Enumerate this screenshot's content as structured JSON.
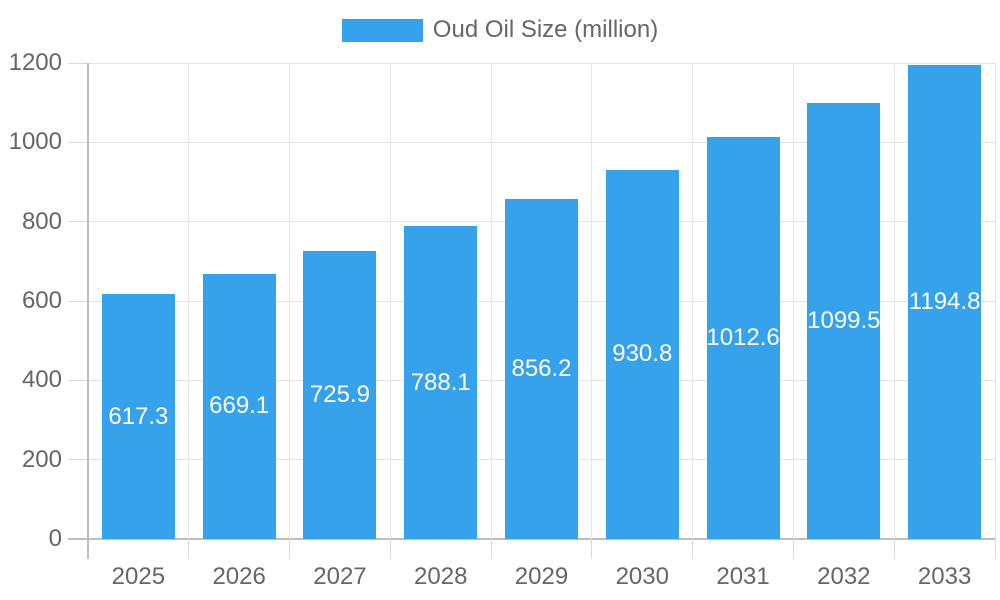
{
  "legend": {
    "label": "Oud Oil Size (million)"
  },
  "chart_data": {
    "type": "bar",
    "title": "",
    "categories": [
      "2025",
      "2026",
      "2027",
      "2028",
      "2029",
      "2030",
      "2031",
      "2032",
      "2033"
    ],
    "series": [
      {
        "name": "Oud Oil Size (million)",
        "values": [
          617.3,
          669.1,
          725.9,
          788.1,
          856.2,
          930.8,
          1012.6,
          1099.5,
          1194.8
        ]
      }
    ],
    "value_labels": [
      "617.3",
      "669.1",
      "725.9",
      "788.1",
      "856.2",
      "930.8",
      "1012.6",
      "1099.5",
      "1194.8"
    ],
    "ylim": [
      0,
      1200
    ],
    "ytick_step": 200,
    "ytick_labels": [
      "0",
      "200",
      "400",
      "600",
      "800",
      "1000",
      "1200"
    ],
    "grid": true,
    "legend_position": "top",
    "value_label_position": "center",
    "colors": {
      "bar": "#36A2EB",
      "grid": "#E4E4E4",
      "axis": "#BDBDBD",
      "tick": "#D9D9D9",
      "tick_text": "#666666",
      "value_text": "#FFFFFF"
    }
  }
}
